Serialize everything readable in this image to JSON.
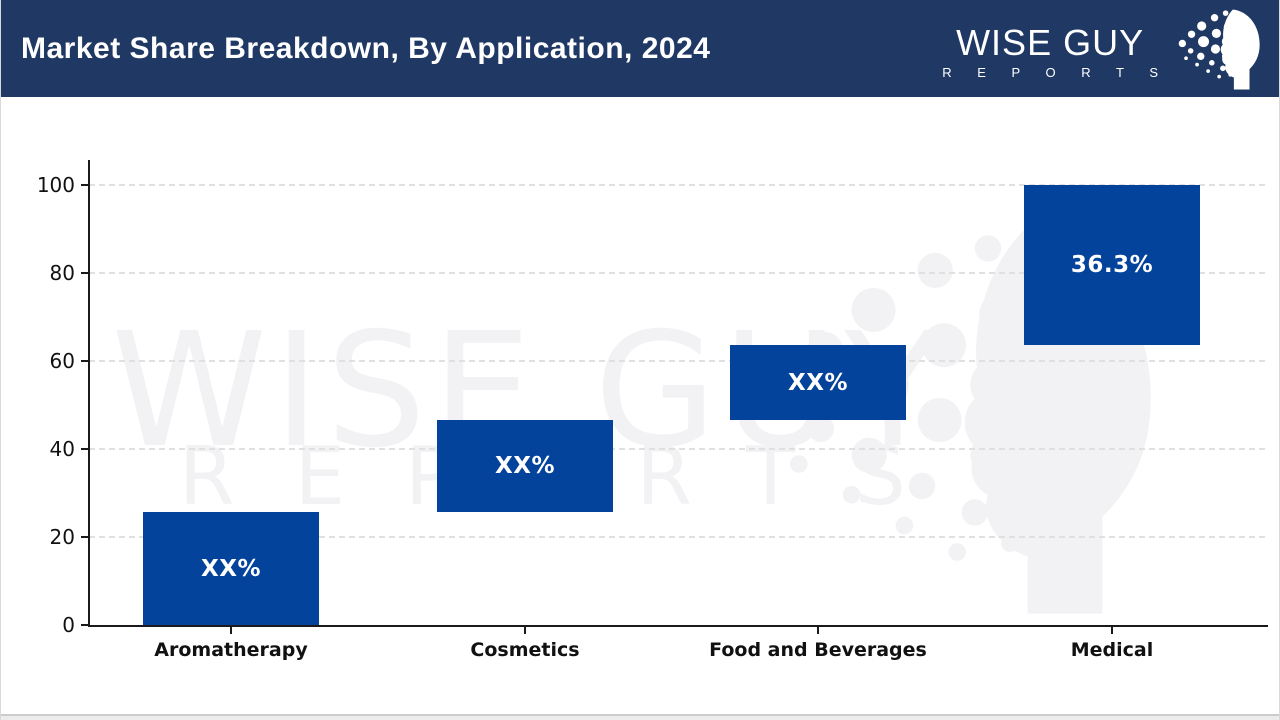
{
  "header": {
    "title": "Market Share Breakdown, By Application, 2024",
    "bg_color": "#1f3864",
    "logo": {
      "line1": "WISE GUY",
      "line2": "R E P O R T S"
    }
  },
  "watermark": {
    "line1": "WISE GUY",
    "line2": "REPORTS"
  },
  "chart_data": {
    "type": "bar",
    "subtype": "floating-waterfall",
    "title": "Market Share Breakdown, By Application, 2024",
    "categories": [
      "Aromatherapy",
      "Cosmetics",
      "Food and Beverages",
      "Medical"
    ],
    "segments": [
      {
        "category": "Aromatherapy",
        "start": 0,
        "end": 25.6,
        "label": "XX%"
      },
      {
        "category": "Cosmetics",
        "start": 25.6,
        "end": 46.5,
        "label": "XX%"
      },
      {
        "category": "Food and Beverages",
        "start": 46.5,
        "end": 63.7,
        "label": "XX%"
      },
      {
        "category": "Medical",
        "start": 63.7,
        "end": 100,
        "label": "36.3%"
      }
    ],
    "y_ticks": [
      0,
      20,
      40,
      60,
      80,
      100
    ],
    "ylim": [
      0,
      105
    ],
    "xlabel": "",
    "ylabel": "",
    "legend": "none",
    "grid": "dashed-horizontal",
    "bar_color": "#04439b",
    "grid_color": "#e0e0e0",
    "axis_color": "#1a1a1a",
    "value_label_color": "#ffffff"
  }
}
